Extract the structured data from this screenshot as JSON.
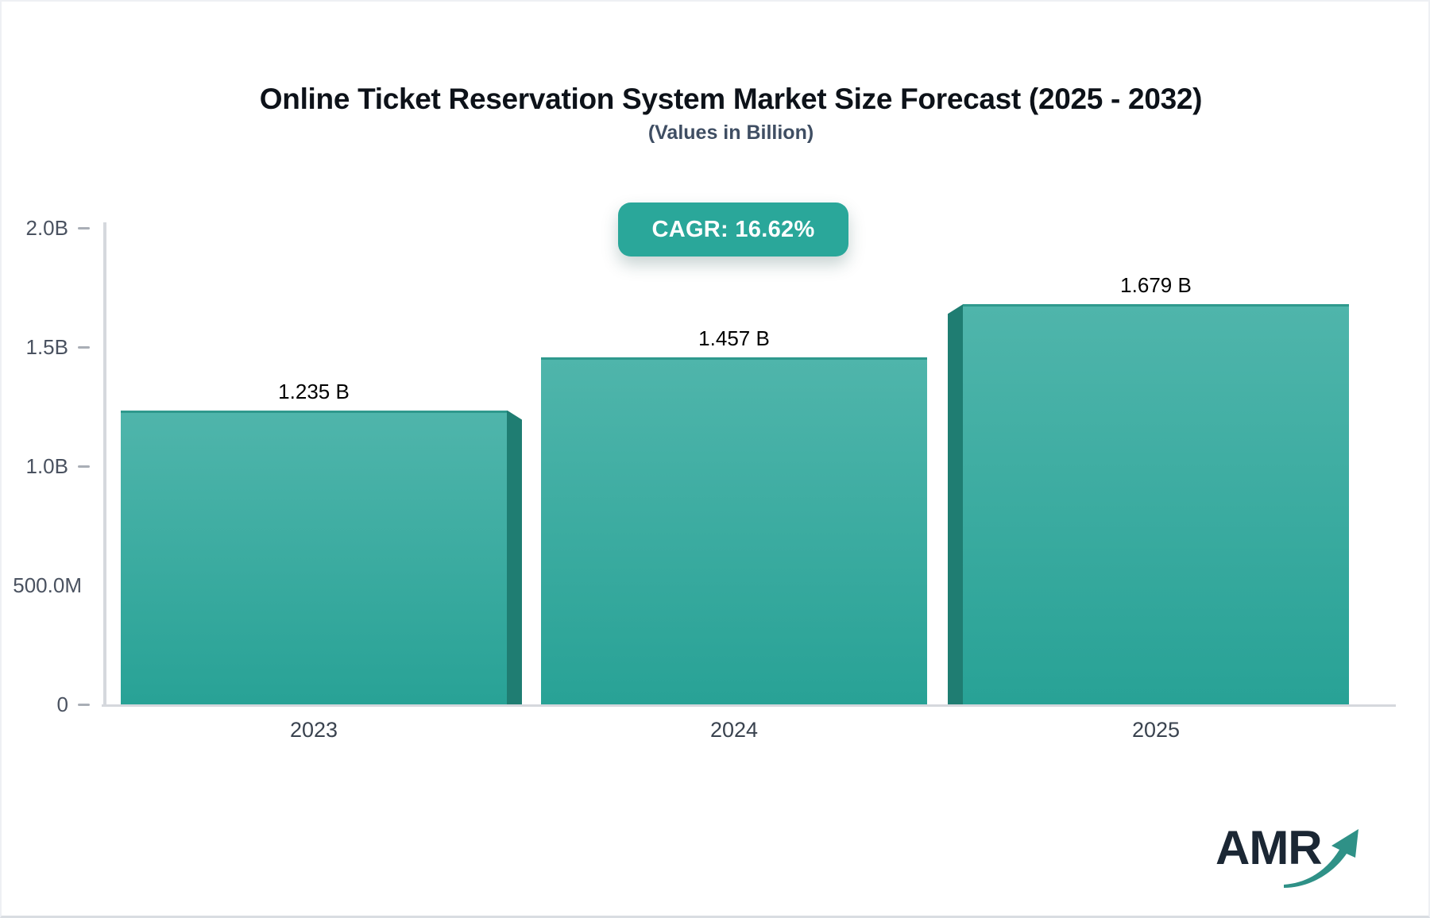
{
  "header": {
    "title": "Online Ticket Reservation System Market Size Forecast (2025 - 2032)",
    "subtitle": "(Values in Billion)",
    "cagr_badge": "CAGR: 16.62%"
  },
  "chart_data": {
    "type": "bar",
    "title": "Online Ticket Reservation System Market Size Forecast (2025 - 2032)",
    "subtitle": "(Values in Billion)",
    "cagr_percent": "16.62%",
    "categories": [
      "2023",
      "2024",
      "2025"
    ],
    "values": [
      1.235,
      1.457,
      1.679
    ],
    "value_labels": [
      "1.235 B",
      "1.457 B",
      "1.679 B"
    ],
    "ylim": [
      0,
      2.0
    ],
    "yticks": [
      {
        "value": 2.0,
        "label": "2.0B",
        "dash": true
      },
      {
        "value": 1.5,
        "label": "1.5B",
        "dash": true
      },
      {
        "value": 1.0,
        "label": "1.0B",
        "dash": true
      },
      {
        "value": 0.5,
        "label": "500.0M",
        "dash": false
      },
      {
        "value": 0,
        "label": "0",
        "dash": true
      }
    ],
    "bar_3d_side": [
      "right",
      "none",
      "left"
    ],
    "grid": false,
    "legend": false
  },
  "logo": {
    "text": "AMR"
  },
  "colors": {
    "bar_top": "#4fb5ab",
    "bar_bottom": "#28a296",
    "bar_edge": "#2f998d",
    "bar_side": "#1f7d72",
    "badge_bg": "#2aa79a",
    "badge_text": "#ffffff",
    "axis_line": "#d5d8dd",
    "tick_dash": "#a9aeb6",
    "y_label": "#4a5260",
    "x_label": "#3a434f",
    "value_label": "#000000",
    "title": "#0d1219",
    "subtitle": "#3f4e63",
    "logo_text": "#1b2734",
    "logo_arrow": "#2f9187"
  }
}
